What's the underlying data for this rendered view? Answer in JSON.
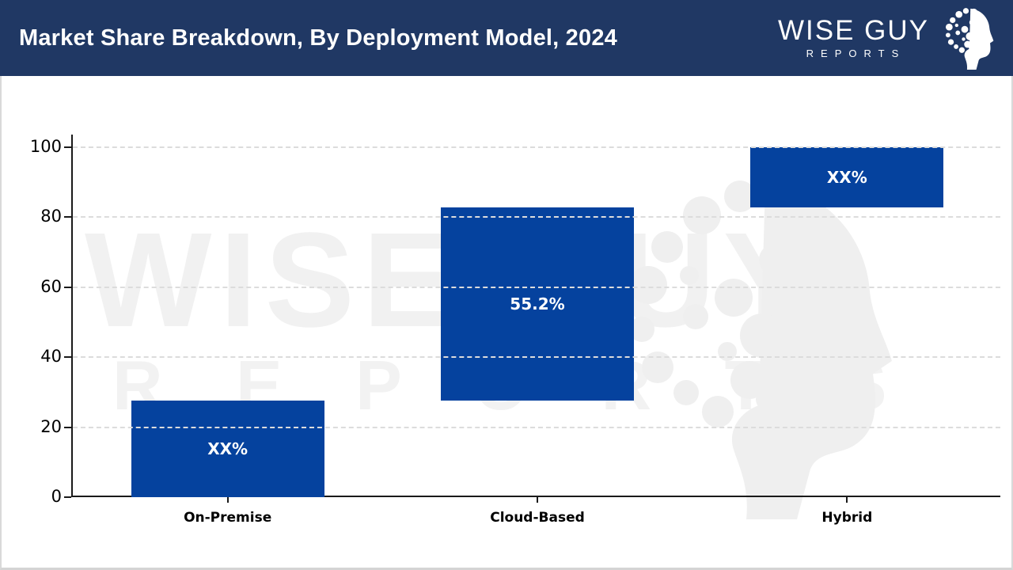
{
  "header": {
    "title": "Market Share Breakdown, By Deployment Model, 2024",
    "logo_line1": "WISE GUY",
    "logo_line2": "REPORTS"
  },
  "watermark": {
    "line1": "WISE GUY",
    "line2": "R E P O R T S"
  },
  "colors": {
    "header_background": "#203864",
    "bar_blue": "#05429E",
    "watermark_gray": "#f1f1f1"
  },
  "chart_data": {
    "type": "bar",
    "subtype": "floating-waterfall",
    "title": "Market Share Breakdown, By Deployment Model, 2024",
    "categories": [
      "On-Premise",
      "Cloud-Based",
      "Hybrid"
    ],
    "segments": [
      {
        "category": "On-Premise",
        "start": 0,
        "end": 27.6,
        "label": "XX%"
      },
      {
        "category": "Cloud-Based",
        "start": 27.6,
        "end": 82.8,
        "label": "55.2%"
      },
      {
        "category": "Hybrid",
        "start": 82.8,
        "end": 100,
        "label": "XX%"
      }
    ],
    "unit": "%",
    "ylim": [
      0,
      100
    ],
    "yticks": [
      0,
      20,
      40,
      60,
      80,
      100
    ],
    "xlabel": "",
    "ylabel": "",
    "grid": "horizontal-dashed",
    "legend": "none",
    "bar_color": "#05429E",
    "bar_label_color": "#ffffff"
  }
}
